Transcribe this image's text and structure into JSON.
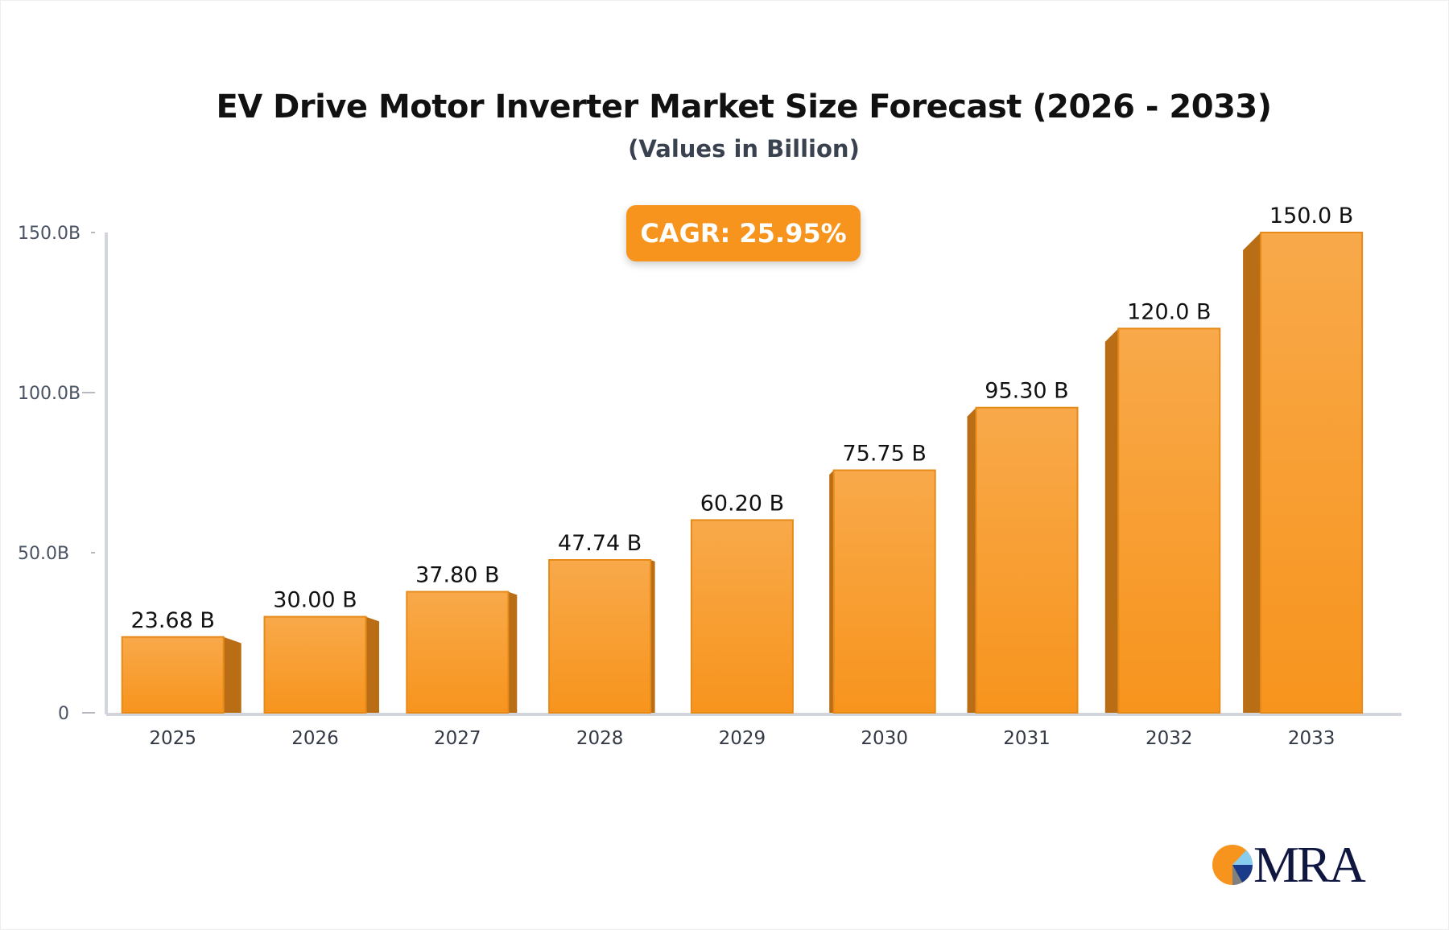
{
  "chart_data": {
    "type": "bar",
    "title": "EV Drive Motor Inverter Market Size Forecast (2026 - 2033)",
    "subtitle": "(Values in Billion)",
    "annotation": "CAGR: 25.95%",
    "categories": [
      "2025",
      "2026",
      "2027",
      "2028",
      "2029",
      "2030",
      "2031",
      "2032",
      "2033"
    ],
    "values": [
      23.68,
      30.0,
      37.8,
      47.74,
      60.2,
      75.75,
      95.3,
      120.0,
      150.0
    ],
    "data_labels": [
      "23.68 B",
      "30.00 B",
      "37.80 B",
      "47.74 B",
      "60.20 B",
      "75.75 B",
      "95.30 B",
      "120.0 B",
      "150.0 B"
    ],
    "yticks": [
      0,
      50,
      100,
      150
    ],
    "ytick_labels": [
      "0",
      "50.0B",
      "100.0B",
      "150.0B"
    ],
    "ylim": [
      0,
      150
    ],
    "xlabel": "",
    "ylabel": "",
    "grid": false,
    "colors": {
      "bar_top": "#f8a94a",
      "bar_bottom": "#f7941d",
      "bar_side": "#b96e16",
      "bar_edge": "#e68a1a",
      "axis": "#d3d5dc"
    }
  },
  "logo": {
    "text": "MRA",
    "colors": [
      "#f7941d",
      "#87cdf0",
      "#1a3a8a",
      "#808080"
    ]
  }
}
